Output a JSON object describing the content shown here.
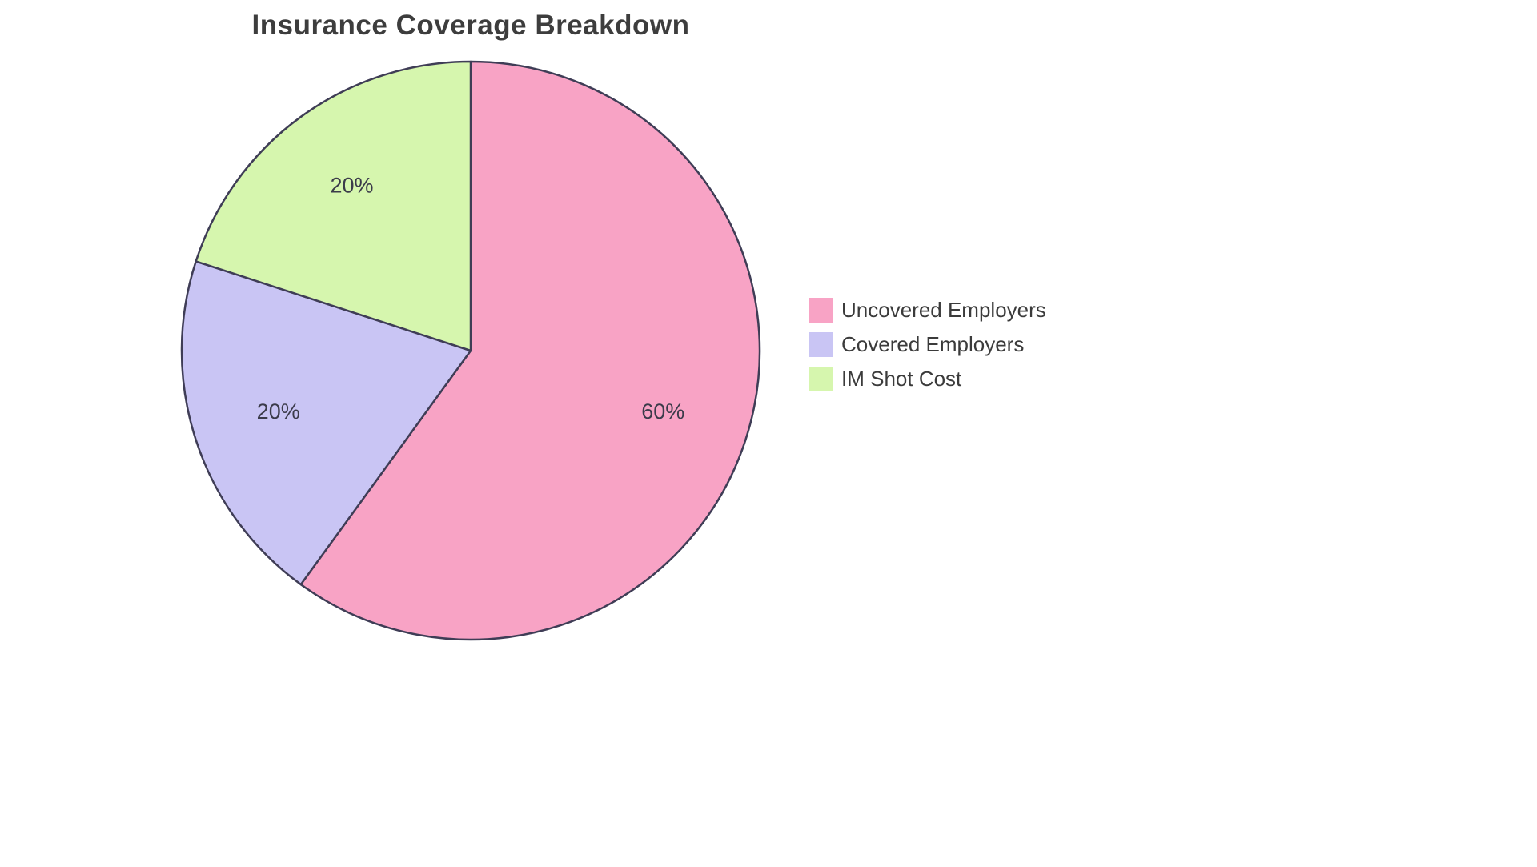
{
  "chart_data": {
    "type": "pie",
    "title": "Insurance Coverage Breakdown",
    "labels": [
      "Uncovered Employers",
      "Covered Employers",
      "IM Shot Cost"
    ],
    "values": [
      60,
      20,
      20
    ],
    "display_labels": [
      "60%",
      "20%",
      "20%"
    ],
    "colors": [
      "#F8A3C5",
      "#C9C5F4",
      "#D6F6AE"
    ],
    "slice_border_color": "#3F3D56",
    "label_text_color": "#3b3b4a",
    "legend_position": "right",
    "start_angle": "top",
    "direction": "clockwise"
  }
}
